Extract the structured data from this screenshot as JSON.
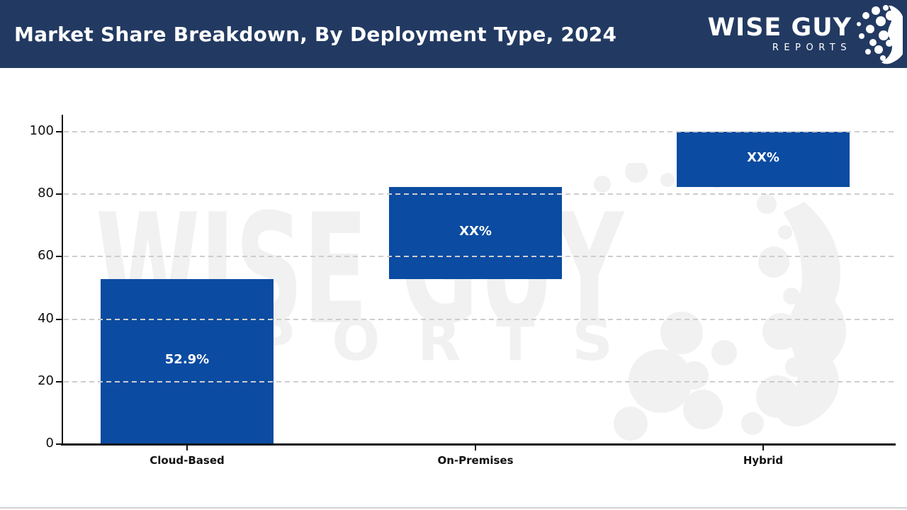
{
  "header": {
    "title": "Market Share Breakdown, By Deployment Type, 2024",
    "logo": {
      "line1": "WISE GUY",
      "line2": "REPORTS"
    }
  },
  "watermark": {
    "line1": "WISE GUY",
    "line2": "REPORTS"
  },
  "chart_data": {
    "type": "bar",
    "subtype": "waterfall",
    "title": "Market Share Breakdown, By Deployment Type, 2024",
    "categories": [
      "Cloud-Based",
      "On-Premises",
      "Hybrid"
    ],
    "bars": [
      {
        "category": "Cloud-Based",
        "start": 0,
        "end": 52.9,
        "label": "52.9%"
      },
      {
        "category": "On-Premises",
        "start": 52.9,
        "end": 82.3,
        "label": "XX%"
      },
      {
        "category": "Hybrid",
        "start": 82.3,
        "end": 100,
        "label": "XX%"
      }
    ],
    "xlabel": "",
    "ylabel": "",
    "ylim": [
      0,
      105
    ],
    "yticks": [
      0,
      20,
      40,
      60,
      80,
      100
    ],
    "grid": true,
    "grid_style": "dashed",
    "legend": false,
    "bar_color": "#0b4ba1"
  },
  "colors": {
    "header_bg": "#223a62",
    "bar": "#0b4ba1",
    "grid": "#cdcdcd",
    "axis": "#111111",
    "watermark": "#f1f1f1",
    "footer_line": "#d0d0d0"
  }
}
